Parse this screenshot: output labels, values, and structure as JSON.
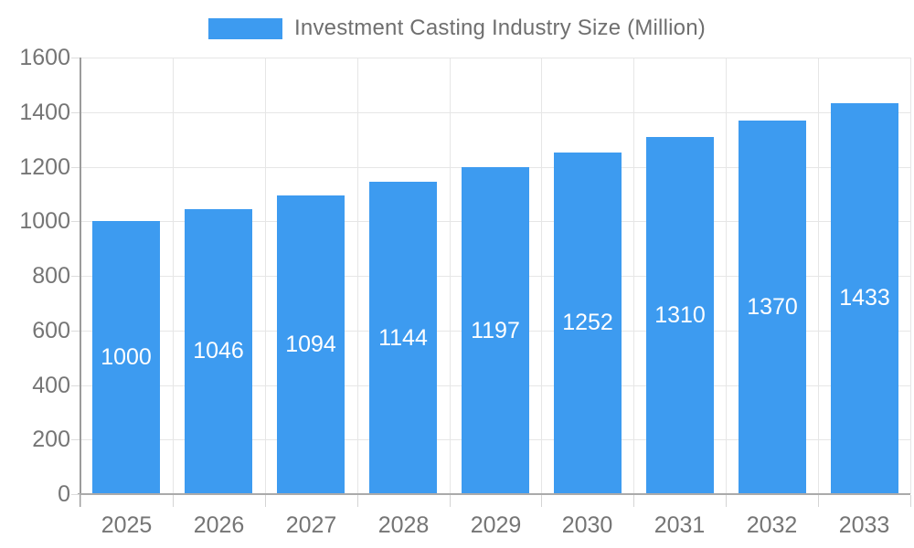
{
  "chart_data": {
    "type": "bar",
    "title": "",
    "legend": "Investment Casting Industry Size (Million)",
    "legend_position": "top-center",
    "series": [
      {
        "name": "Investment Casting Industry Size (Million)",
        "values": [
          1000,
          1046,
          1094,
          1144,
          1197,
          1252,
          1310,
          1370,
          1433
        ]
      }
    ],
    "categories": [
      "2025",
      "2026",
      "2027",
      "2028",
      "2029",
      "2030",
      "2031",
      "2032",
      "2033"
    ],
    "data_labels": [
      "1000",
      "1046",
      "1094",
      "1144",
      "1197",
      "1252",
      "1310",
      "1370",
      "1433"
    ],
    "xlabel": "",
    "ylabel": "",
    "ylim": [
      0,
      1600
    ],
    "yticks": [
      0,
      200,
      400,
      600,
      800,
      1000,
      1200,
      1400,
      1600
    ],
    "grid": "on",
    "colors": {
      "bar": "#3d9bf0",
      "bar_value_text": "#ffffff",
      "axis_text": "#757575",
      "legend_text": "#6f6f6f",
      "gridline": "#e6e6e6",
      "axis_line": "#9b9b9b"
    }
  }
}
